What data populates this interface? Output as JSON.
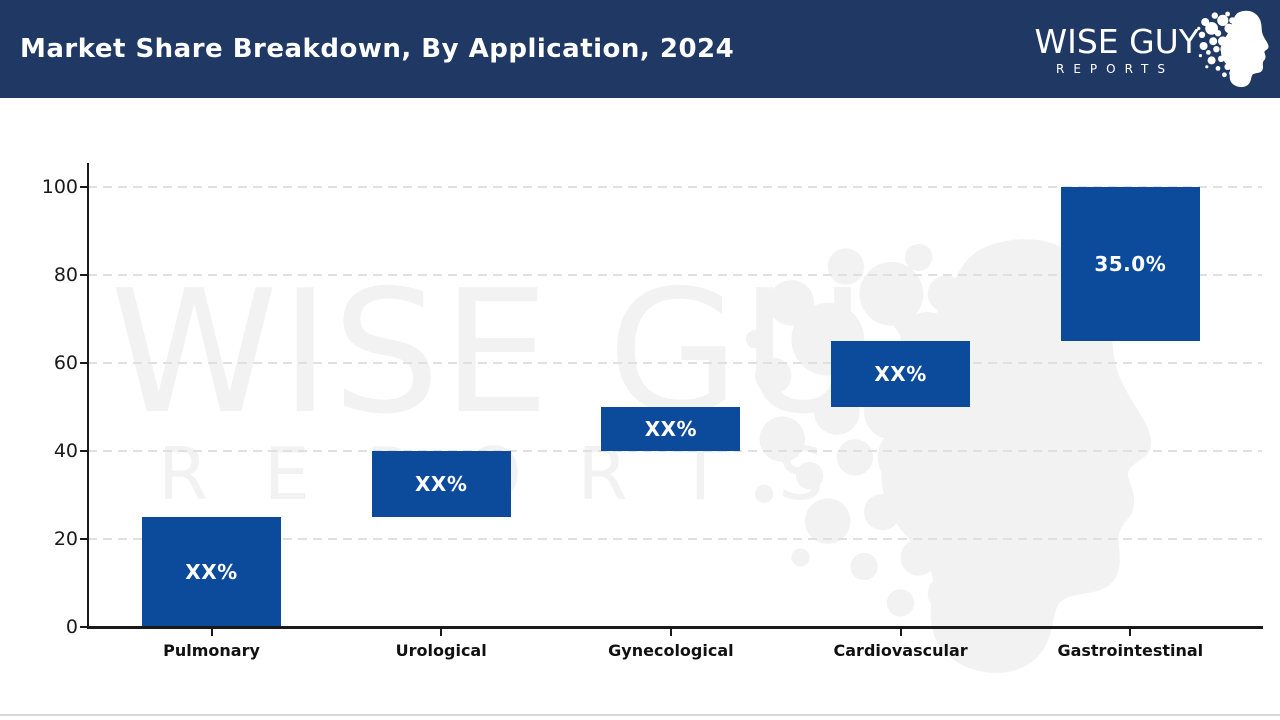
{
  "header": {
    "title": "Market Share Breakdown, By Application, 2024",
    "bg_color": "#1f3864",
    "logo": {
      "line1": "WISE GUY",
      "line2": "REPORTS",
      "head_icon": "dotted-head-profile-icon"
    }
  },
  "watermark": {
    "line1": "WISE GUY",
    "line2": "REPORTS",
    "color": "#f2f2f2"
  },
  "chart_data": {
    "type": "bar",
    "subtype": "waterfall",
    "title": "Market Share Breakdown, By Application, 2024",
    "categories": [
      "Pulmonary",
      "Urological",
      "Gynecological",
      "Cardiovascular",
      "Gastrointestinal"
    ],
    "segments": [
      {
        "category": "Pulmonary",
        "start": 0,
        "end": 25,
        "value": 25,
        "label": "XX%"
      },
      {
        "category": "Urological",
        "start": 25,
        "end": 40,
        "value": 15,
        "label": "XX%"
      },
      {
        "category": "Gynecological",
        "start": 40,
        "end": 50,
        "value": 10,
        "label": "XX%"
      },
      {
        "category": "Cardiovascular",
        "start": 50,
        "end": 65,
        "value": 15,
        "label": "XX%"
      },
      {
        "category": "Gastrointestinal",
        "start": 65,
        "end": 100,
        "value": 35,
        "label": "35.0%"
      }
    ],
    "yticks": [
      0,
      20,
      40,
      60,
      80,
      100
    ],
    "ylim": [
      0,
      105
    ],
    "xlabel": "",
    "ylabel": "",
    "grid": "horizontal-dashed",
    "legend": "none",
    "bar_color": "#0c4a9c",
    "bar_label_color": "#ffffff",
    "axis_color": "#1a1a1a"
  }
}
